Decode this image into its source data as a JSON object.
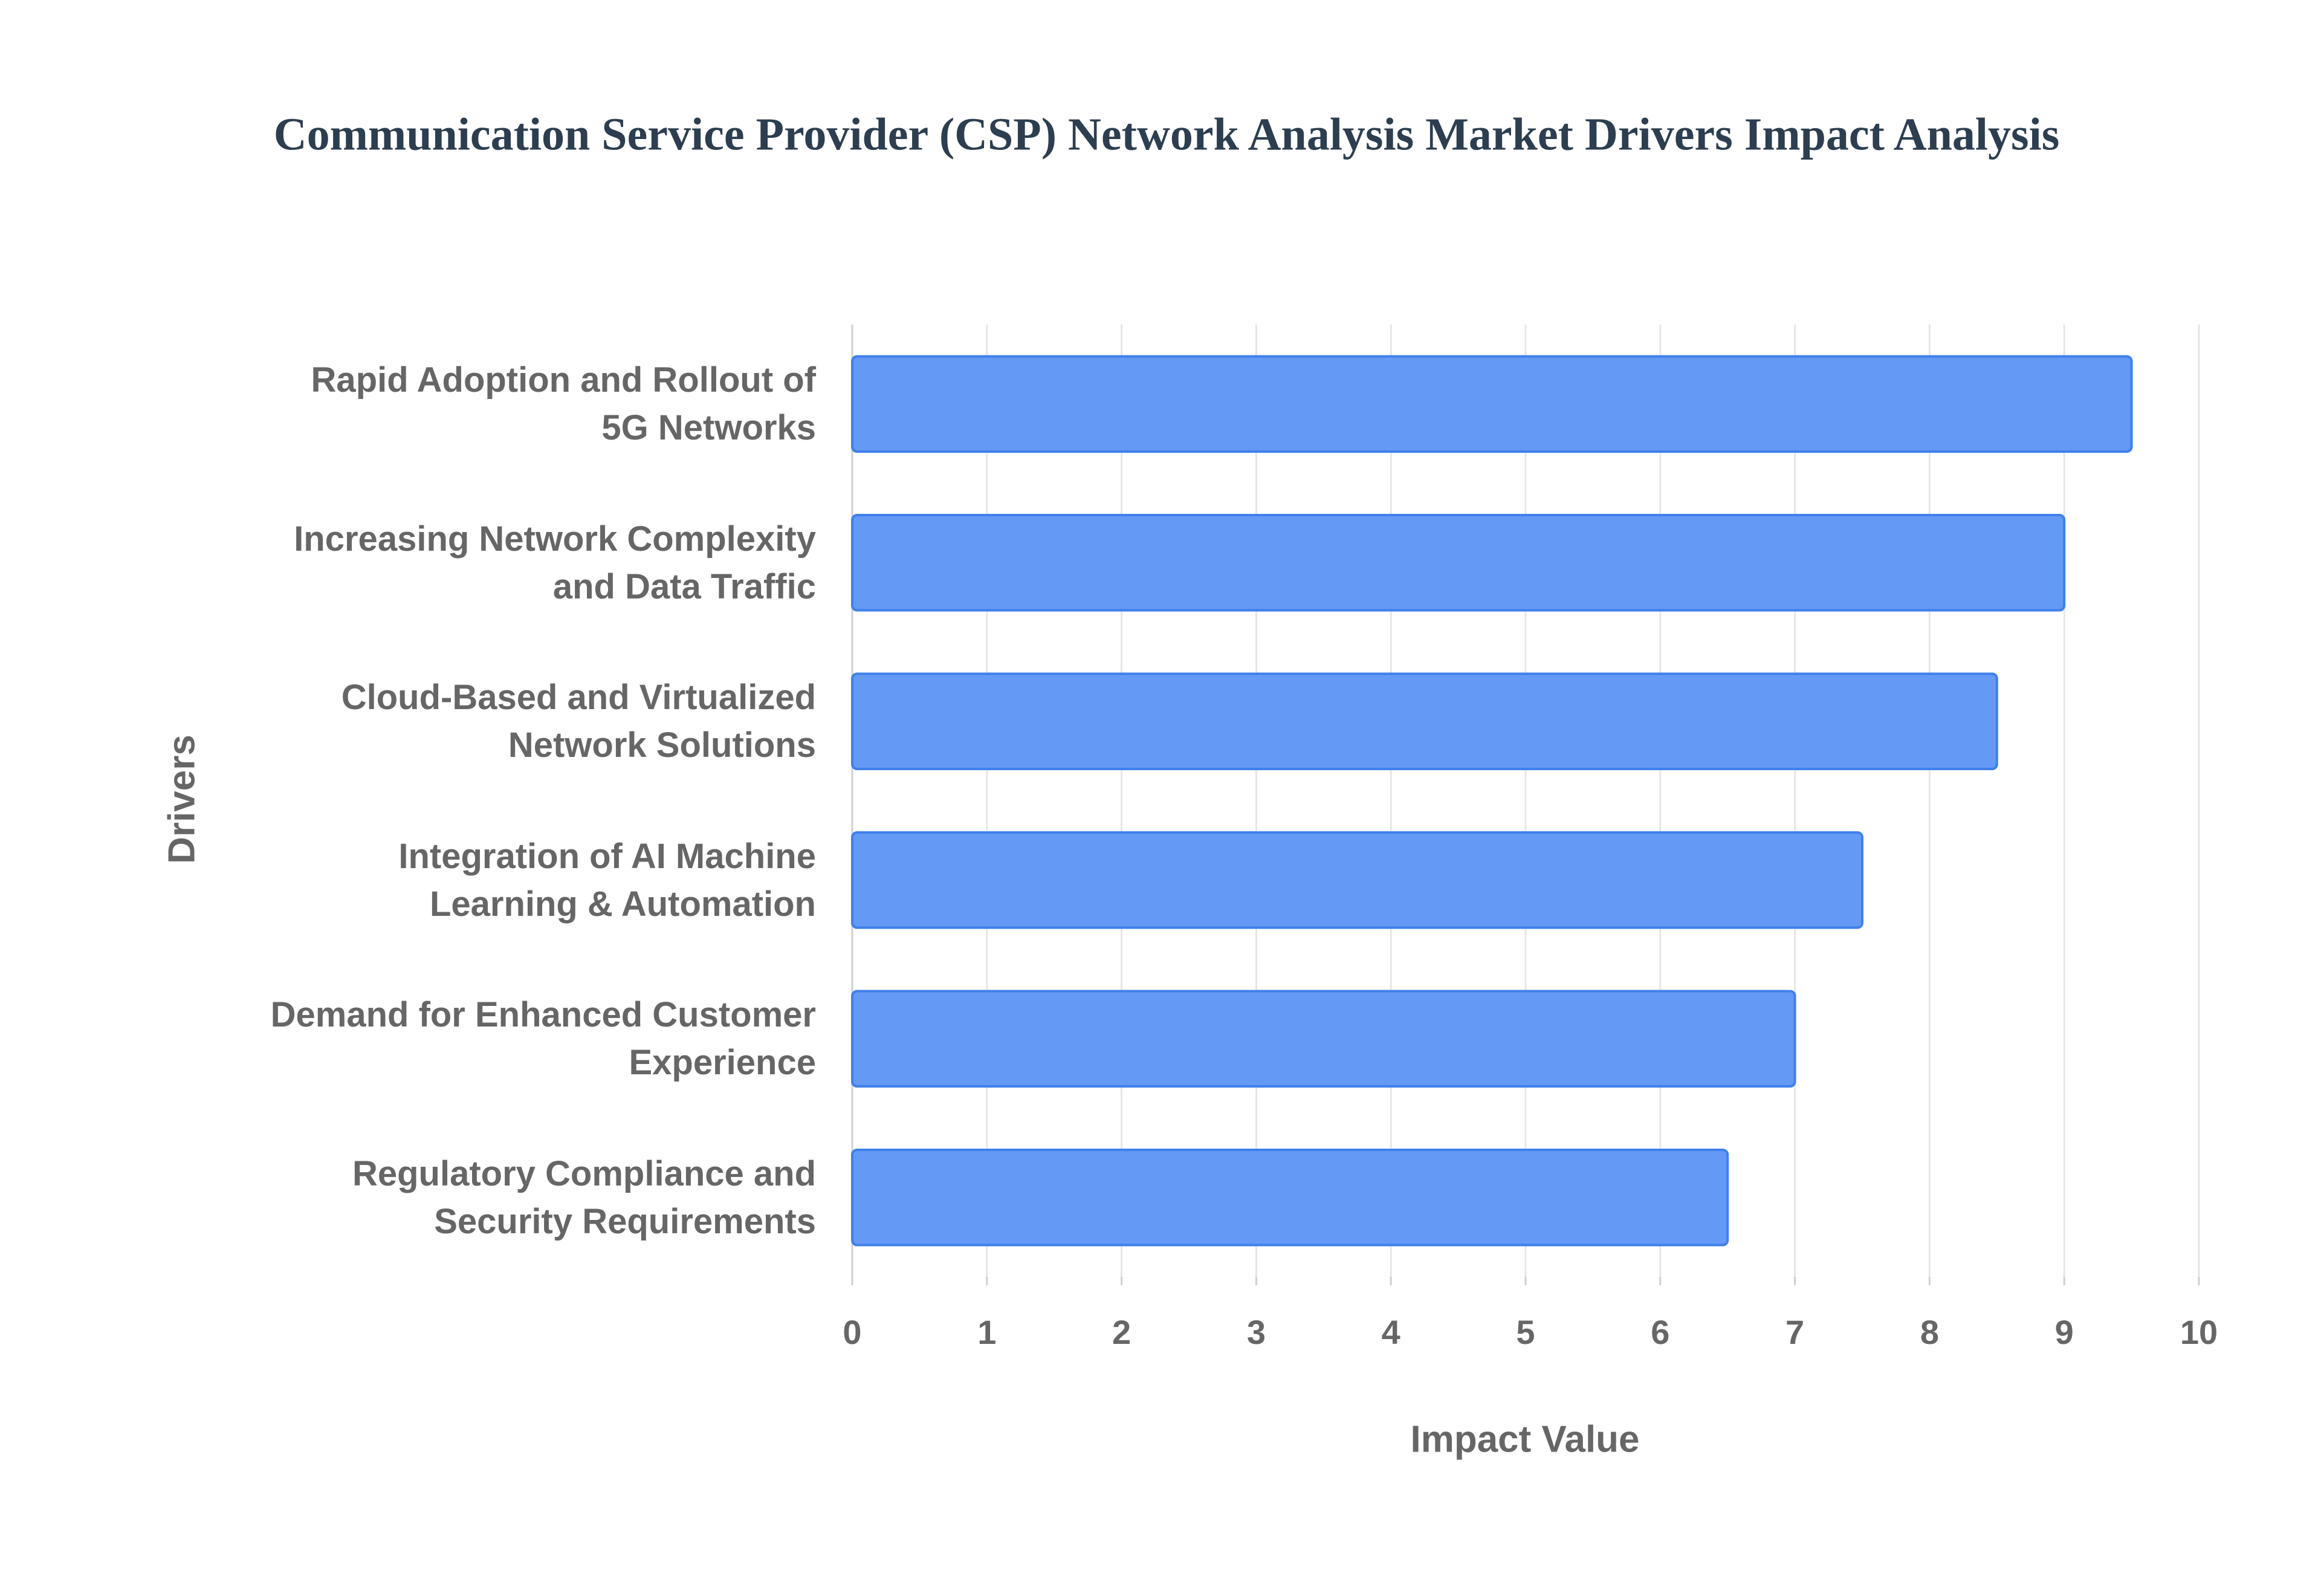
{
  "chart_data": {
    "type": "bar",
    "orientation": "horizontal",
    "title": "Communication Service Provider (CSP) Network Analysis Market Drivers Impact Analysis",
    "x_label": "Impact Value",
    "y_label": "Drivers",
    "categories": [
      "Rapid Adoption and Rollout of\n5G Networks",
      "Increasing Network Complexity\nand Data Traffic",
      "Cloud-Based and Virtualized\nNetwork Solutions",
      "Integration of AI Machine\nLearning & Automation",
      "Demand for Enhanced Customer\nExperience",
      "Regulatory Compliance and\nSecurity Requirements"
    ],
    "values": [
      9.5,
      9,
      8.5,
      7.5,
      7,
      6.5
    ],
    "color": "#6499f5",
    "border_color": "#3f80ec",
    "xlim": [
      0,
      10
    ],
    "xticks": [
      0,
      1,
      2,
      3,
      4,
      5,
      6,
      7,
      8,
      9,
      10
    ],
    "grid": true
  }
}
